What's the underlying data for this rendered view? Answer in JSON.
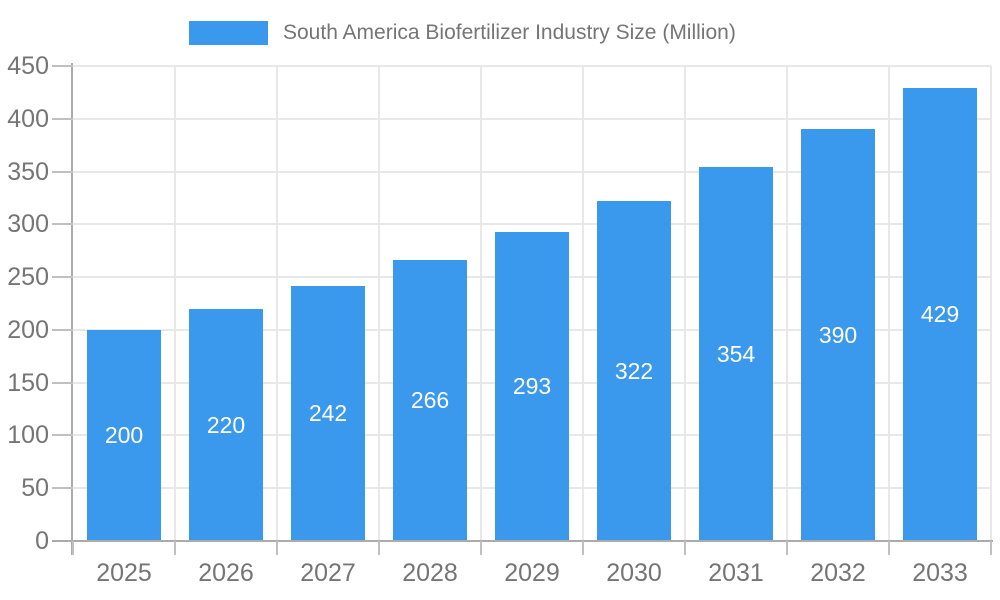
{
  "legend": {
    "label": "South America Biofertilizer Industry Size (Million)",
    "swatch_color": "#3A99EC"
  },
  "chart_data": {
    "type": "bar",
    "title": "South America Biofertilizer Industry Size (Million)",
    "categories": [
      "2025",
      "2026",
      "2027",
      "2028",
      "2029",
      "2030",
      "2031",
      "2032",
      "2033"
    ],
    "values": [
      200,
      220,
      242,
      266,
      293,
      322,
      354,
      390,
      429
    ],
    "xlabel": "",
    "ylabel": "",
    "ylim": [
      0,
      450
    ],
    "yticks": [
      0,
      50,
      100,
      150,
      200,
      250,
      300,
      350,
      400,
      450
    ],
    "grid": true,
    "legend_position": "top",
    "bar_color": "#3A99EC",
    "value_label_color": "#ffffff",
    "axis_text_color": "#757575",
    "gridline_color": "#e8e8e8",
    "axis_line_color": "#ababab",
    "tick_color": "#c0c0c0"
  }
}
